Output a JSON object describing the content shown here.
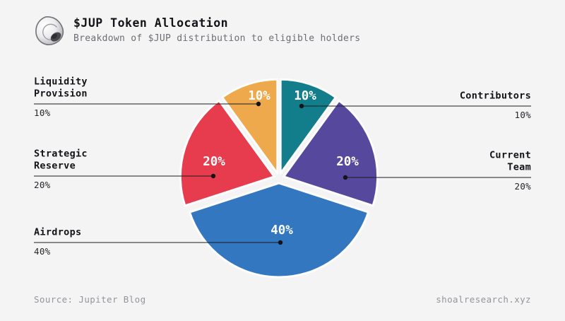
{
  "header": {
    "title": "$JUP Token Allocation",
    "subtitle": "Breakdown of $JUP distribution to eligible holders",
    "icon": "shell-icon"
  },
  "footer": {
    "source": "Source: Jupiter Blog",
    "site": "shoalresearch.xyz"
  },
  "chart_data": {
    "type": "pie",
    "title": "$JUP Token Allocation",
    "start_angle_deg": 0,
    "direction": "clockwise",
    "legend_position": "none",
    "exploded": true,
    "slices": [
      {
        "label": "Contributors",
        "value": 10,
        "percent_label": "10%",
        "color": "#127e8b"
      },
      {
        "label": "Current Team",
        "value": 20,
        "percent_label": "20%",
        "color": "#56489c"
      },
      {
        "label": "Airdrops",
        "value": 40,
        "percent_label": "40%",
        "color": "#3277bf"
      },
      {
        "label": "Strategic Reserve",
        "value": 20,
        "percent_label": "20%",
        "color": "#e73c4e"
      },
      {
        "label": "Liquidity Provision",
        "value": 10,
        "percent_label": "10%",
        "color": "#eda94c"
      }
    ],
    "annotation_text_color": "#ffffff"
  },
  "annotations": {
    "left": [
      {
        "label": "Liquidity\nProvision",
        "value": "10%"
      },
      {
        "label": "Strategic\nReserve",
        "value": "20%"
      },
      {
        "label": "Airdrops",
        "value": "40%"
      }
    ],
    "right": [
      {
        "label": "Contributors",
        "value": "10%"
      },
      {
        "label": "Current\nTeam",
        "value": "20%"
      }
    ]
  }
}
